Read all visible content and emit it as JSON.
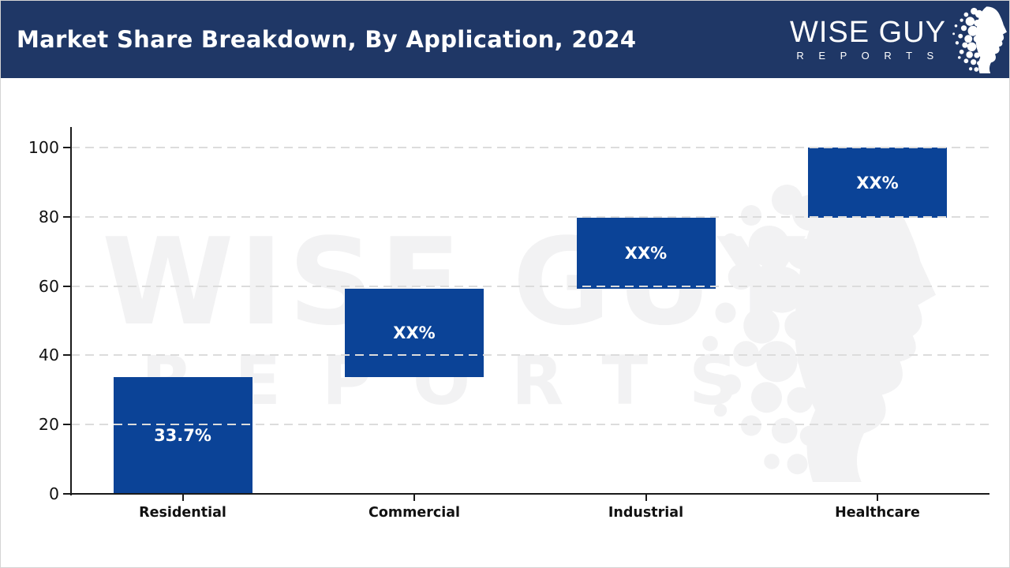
{
  "header": {
    "title": "Market Share Breakdown, By Application, 2024",
    "logo": {
      "line1": "WISE GUY",
      "line2": "R E P O R T S"
    }
  },
  "watermark": {
    "line1": "WISE GUY",
    "line2": "REPORTS"
  },
  "chart_data": {
    "type": "bar",
    "subtype": "floating-waterfall",
    "title": "Market Share Breakdown, By Application, 2024",
    "categories": [
      "Residential",
      "Commercial",
      "Industrial",
      "Healthcare"
    ],
    "segments": [
      {
        "category": "Residential",
        "start": 0,
        "end": 33.7,
        "label": "33.7%"
      },
      {
        "category": "Commercial",
        "start": 33.7,
        "end": 59.3,
        "label": "XX%"
      },
      {
        "category": "Industrial",
        "start": 59.3,
        "end": 79.7,
        "label": "XX%"
      },
      {
        "category": "Healthcare",
        "start": 79.7,
        "end": 100,
        "label": "XX%"
      }
    ],
    "ylim": [
      0,
      100
    ],
    "yticks": [
      0,
      20,
      40,
      60,
      80,
      100
    ],
    "xlabel": "",
    "ylabel": "",
    "grid": {
      "horizontal": true,
      "style": "dashed",
      "drawn_above_bars": true
    },
    "legend": "none",
    "bar_color": "#0b4397",
    "bar_label_color": "#ffffff"
  },
  "colors": {
    "header_bg": "#1f3766",
    "bar": "#0b4397",
    "axis": "#1a1a1a",
    "grid": "#dcdcdc",
    "watermark": "#f2f2f3",
    "page_border": "#d4d4d4"
  }
}
